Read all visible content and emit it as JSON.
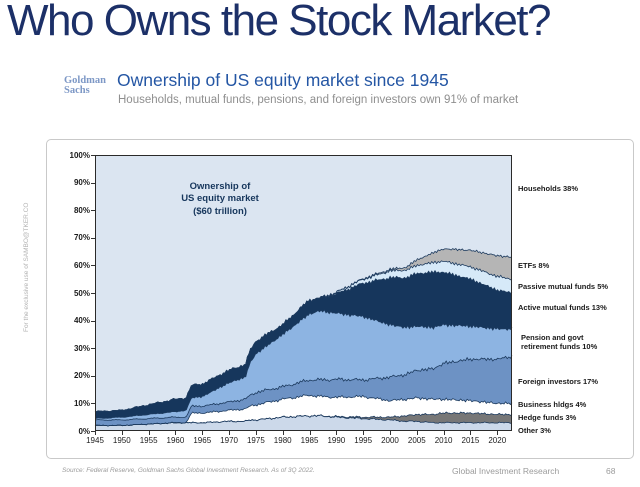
{
  "slide": {
    "title": "Who Owns the Stock Market?"
  },
  "logo": {
    "line1": "Goldman",
    "line2": "Sachs"
  },
  "header": {
    "title": "Ownership of US equity market since 1945",
    "subtitle": "Households, mutual funds, pensions, and foreign investors own 91% of market"
  },
  "watermark": "For the exclusive use of SAMBO@TKER.CO",
  "footer": {
    "source": "Source: Federal Reserve, Goldman Sachs Global Investment Research. As of 3Q 2022.",
    "department": "Global Investment Research",
    "page": "68"
  },
  "chart_data": {
    "type": "area",
    "stacked": true,
    "annotation_lines": [
      "Ownership of",
      "US equity market",
      "($60 trillion)"
    ],
    "xlim": [
      1945,
      2022.75
    ],
    "ylim": [
      0,
      100
    ],
    "x_ticks": [
      1945,
      1950,
      1955,
      1960,
      1965,
      1970,
      1975,
      1980,
      1985,
      1990,
      1995,
      2000,
      2005,
      2010,
      2015,
      2020
    ],
    "y_ticks": [
      0,
      10,
      20,
      30,
      40,
      50,
      60,
      70,
      80,
      90,
      100
    ],
    "y_tick_suffix": "%",
    "grid": false,
    "legend_position": "right",
    "stroke_color": "#1c3a5e",
    "border_color": "#2a2a2a",
    "x": [
      1945,
      1950,
      1955,
      1960,
      1962,
      1963,
      1965,
      1970,
      1973,
      1974,
      1975,
      1980,
      1985,
      1987,
      1990,
      1995,
      2000,
      2003,
      2005,
      2008,
      2010,
      2015,
      2020,
      2022.75
    ],
    "households": {
      "name": "households",
      "label": "Households 38%",
      "color": "#dbe5f1"
    },
    "series": [
      {
        "name": "other",
        "label": "Other 3%",
        "color": "#ccd9ea",
        "values": [
          2,
          2,
          2.5,
          3,
          3,
          3,
          3,
          3.5,
          3.5,
          4,
          4,
          5,
          5.5,
          5.5,
          5,
          4.5,
          4,
          3.5,
          3.5,
          3,
          3,
          3,
          3,
          3
        ]
      },
      {
        "name": "hedge",
        "label": "Hedge funds 3%",
        "color": "#777777",
        "values": [
          0,
          0,
          0,
          0,
          0,
          0,
          0,
          0,
          0,
          0,
          0,
          0,
          0,
          0,
          0.2,
          0.5,
          1,
          2,
          2.5,
          3,
          3.5,
          3.5,
          3,
          3
        ]
      },
      {
        "name": "business",
        "label": "Business hldgs 4%",
        "color": "#ffffff",
        "values": [
          0,
          0,
          0,
          0,
          0,
          3.5,
          3.5,
          4,
          4.5,
          5,
          5.5,
          6.5,
          7.5,
          7,
          7,
          7.5,
          6,
          6,
          6,
          5.5,
          5,
          4.5,
          4,
          4
        ]
      },
      {
        "name": "foreign",
        "label": "Foreign investors 17%",
        "color": "#6d92c4",
        "values": [
          2,
          2,
          2,
          2,
          2,
          2.5,
          2.5,
          3,
          3.5,
          4,
          4.5,
          4.5,
          5.5,
          6,
          6.5,
          6,
          8.5,
          9,
          10,
          11,
          13,
          15,
          16,
          17
        ]
      },
      {
        "name": "pension",
        "label": "Pension and govt retirement funds 10%",
        "color": "#8db4e2",
        "values": [
          0.5,
          1,
          1.5,
          2,
          2.5,
          3,
          3.5,
          7,
          8,
          12,
          14,
          19,
          24,
          25,
          24,
          23,
          19,
          17,
          16,
          15,
          14,
          12,
          11,
          10
        ]
      },
      {
        "name": "active",
        "label": "Active mutual funds 13%",
        "color": "#16365c",
        "values": [
          2.5,
          2.5,
          3.5,
          4.5,
          4.5,
          4.5,
          4.5,
          4.5,
          4.5,
          4.5,
          4.5,
          3.5,
          5,
          4.5,
          7,
          12,
          17,
          18,
          19,
          20,
          19,
          17,
          14,
          13
        ]
      },
      {
        "name": "passive",
        "label": "Passive mutual funds 5%",
        "color": "#d6e9f8",
        "values": [
          0,
          0,
          0,
          0,
          0,
          0,
          0,
          0,
          0,
          0,
          0,
          0,
          0,
          0.2,
          0.5,
          1.5,
          2.5,
          2.8,
          3,
          3.5,
          4,
          4.5,
          5,
          5
        ]
      },
      {
        "name": "etf",
        "label": "ETFs 8%",
        "color": "#b5b5b5",
        "values": [
          0,
          0,
          0,
          0,
          0,
          0,
          0,
          0,
          0,
          0,
          0,
          0,
          0,
          0,
          0,
          0.2,
          0.5,
          1,
          2,
          3.5,
          4.5,
          6,
          7.5,
          8
        ]
      }
    ]
  }
}
